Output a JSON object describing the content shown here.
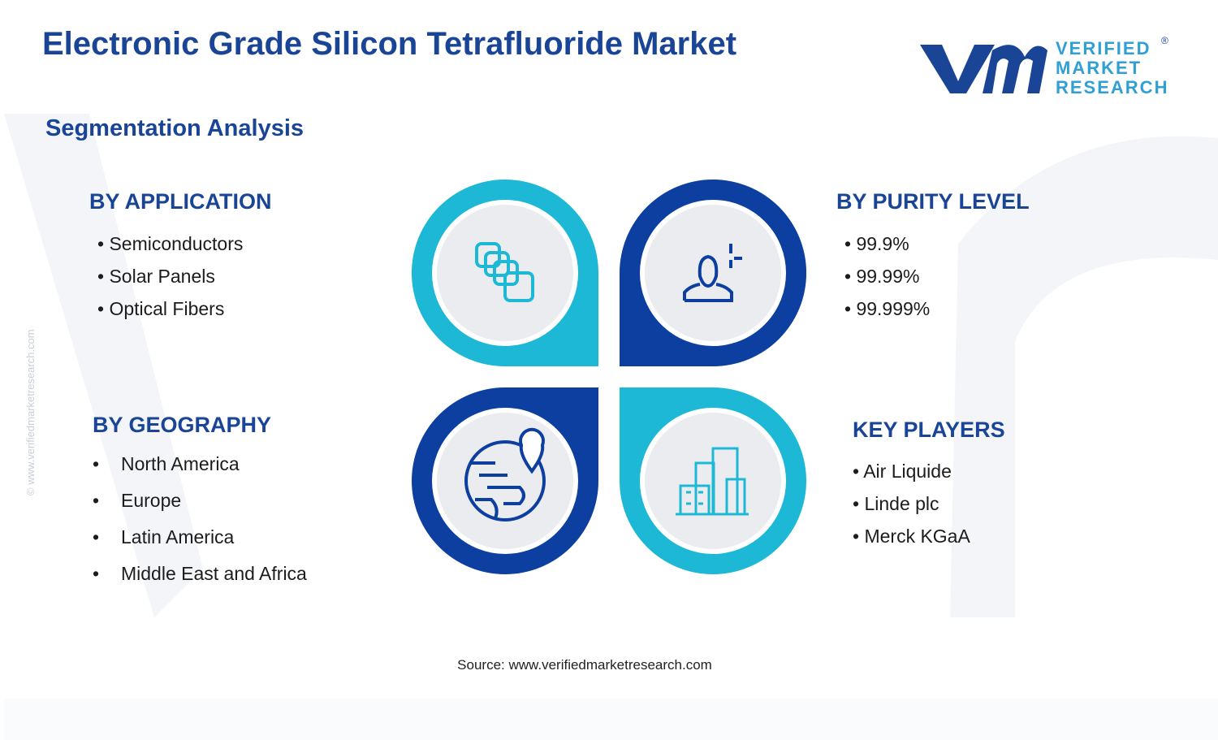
{
  "header": {
    "title": "Electronic Grade Silicon Tetrafluoride Market",
    "logo": {
      "lines": [
        "VERIFIED",
        "MARKET",
        "RESEARCH"
      ],
      "registered": "®"
    }
  },
  "subtitle": "Segmentation Analysis",
  "segments": [
    {
      "heading": "BY APPLICATION",
      "items": [
        "Semiconductors",
        "Solar Panels",
        "Optical Fibers"
      ]
    },
    {
      "heading": "BY PURITY LEVEL",
      "items": [
        "99.9%",
        "99.99%",
        "99.999%"
      ]
    },
    {
      "heading": "BY GEOGRAPHY",
      "items": [
        "North America",
        "Europe",
        "Latin America",
        "Middle East and Africa"
      ]
    },
    {
      "heading": "KEY PLAYERS",
      "items": [
        "Air Liquide",
        "Linde plc",
        "Merck KGaA"
      ]
    }
  ],
  "source": "Source: www.verifiedmarketresearch.com",
  "side_note": "© www.verifiedmarketresearch.com"
}
